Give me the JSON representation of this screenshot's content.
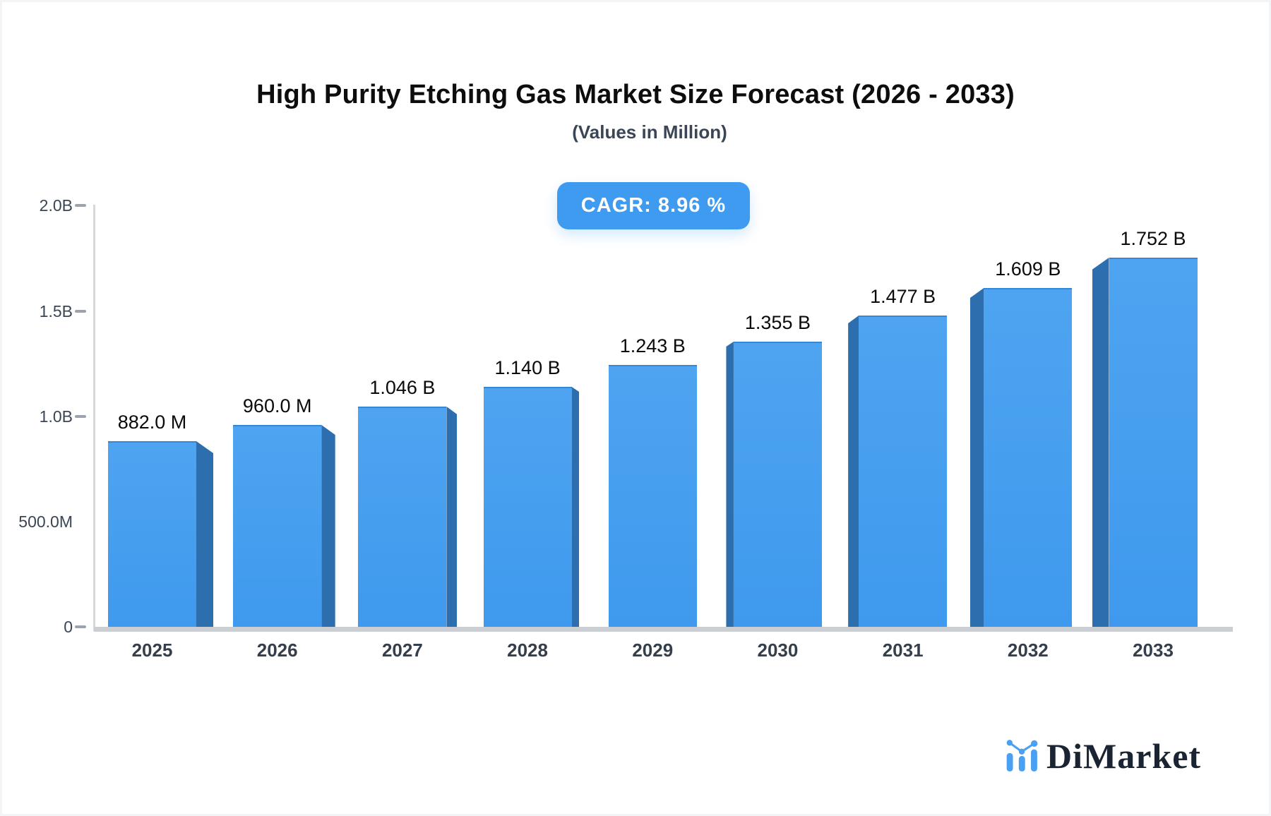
{
  "title": "High Purity Etching Gas Market Size Forecast (2026 - 2033)",
  "subtitle": "(Values in Million)",
  "badge": {
    "label": "CAGR: 8.96 %",
    "bg_color": "#3e9bf0",
    "text_color": "#ffffff"
  },
  "chart_data": {
    "type": "bar",
    "title": "High Purity Etching Gas Market Size Forecast (2026 - 2033)",
    "subtitle": "(Values in Million)",
    "categories": [
      "2025",
      "2026",
      "2027",
      "2028",
      "2029",
      "2030",
      "2031",
      "2032",
      "2033"
    ],
    "values_in_million": [
      882.0,
      960.0,
      1046,
      1140,
      1243,
      1355,
      1477,
      1609,
      1752
    ],
    "value_labels": [
      "882.0 M",
      "960.0 M",
      "1.046 B",
      "1.140 B",
      "1.243 B",
      "1.355 B",
      "1.477 B",
      "1.609 B",
      "1.752 B"
    ],
    "ylim_million": [
      0,
      2000
    ],
    "y_axis_ticks": [
      {
        "label": "2.0B",
        "value_million": 2000,
        "dash": true
      },
      {
        "label": "1.5B",
        "value_million": 1500,
        "dash": true
      },
      {
        "label": "1.0B",
        "value_million": 1000,
        "dash": true
      },
      {
        "label": "500.0M",
        "value_million": 500,
        "dash": false
      },
      {
        "label": "0",
        "value_million": 0,
        "dash": true
      }
    ],
    "grid": false,
    "legend": false,
    "bar_color": "#459fef",
    "bar_side_color": "#2d6fae",
    "axis_color": "#cbced3"
  },
  "logo": {
    "text": "DiMarket",
    "icon": "bar-chart-trend-icon",
    "text_color": "#1b2433",
    "icon_color": "#4aa0f2"
  }
}
